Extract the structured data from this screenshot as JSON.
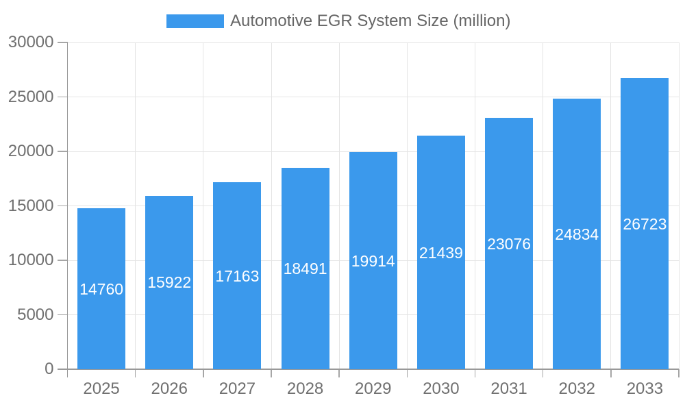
{
  "legend": {
    "label": "Automotive EGR System Size (million)"
  },
  "chart_data": {
    "type": "bar",
    "title": "",
    "categories": [
      "2025",
      "2026",
      "2027",
      "2028",
      "2029",
      "2030",
      "2031",
      "2032",
      "2033"
    ],
    "series": [
      {
        "name": "Automotive EGR System Size (million)",
        "values": [
          14760,
          15922,
          17163,
          18491,
          19914,
          21439,
          23076,
          24834,
          26723
        ]
      }
    ],
    "xlabel": "",
    "ylabel": "",
    "ylim": [
      0,
      30000
    ],
    "yticks": [
      0,
      5000,
      10000,
      15000,
      20000,
      25000,
      30000
    ],
    "grid": "horizontal and vertical light gridlines",
    "legend_position": "top-center",
    "bar_value_labels": "white numbers centered inside bars"
  },
  "colors": {
    "bar": "#3B99EC",
    "grid": "#E4E4E4",
    "axis": "#999999",
    "tick": "#A6A6A6",
    "axis_label": "#707070",
    "legend_text": "#666666",
    "bar_label": "#FFFFFF",
    "background": "#FFFFFF"
  }
}
